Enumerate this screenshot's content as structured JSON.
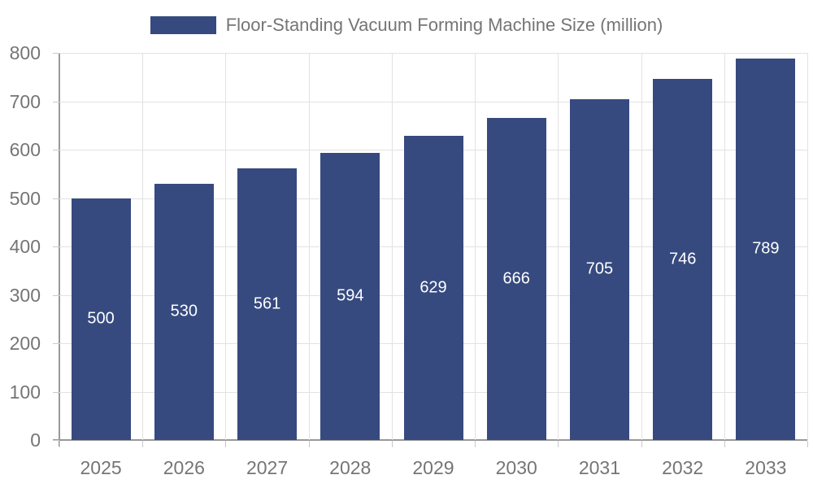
{
  "legend": {
    "label": "Floor-Standing Vacuum Forming Machine Size (million)"
  },
  "colors": {
    "bar": "#364A7F",
    "value_label": "#ffffff",
    "axis_label": "#757575",
    "gridline": "#e2e2e2",
    "axis_line": "#999999",
    "background": "#ffffff"
  },
  "chart_data": {
    "type": "bar",
    "title": "Floor-Standing Vacuum Forming Machine Size (million)",
    "categories": [
      "2025",
      "2026",
      "2027",
      "2028",
      "2029",
      "2030",
      "2031",
      "2032",
      "2033"
    ],
    "values": [
      500,
      530,
      561,
      594,
      629,
      666,
      705,
      746,
      789
    ],
    "series_name": "Floor-Standing Vacuum Forming Machine Size (million)",
    "xlabel": "",
    "ylabel": "",
    "ylim": [
      0,
      800
    ],
    "ytick_interval": 100,
    "yticks": [
      0,
      100,
      200,
      300,
      400,
      500,
      600,
      700,
      800
    ],
    "grid": true,
    "legend_position": "top",
    "value_labels": "inside-center"
  }
}
